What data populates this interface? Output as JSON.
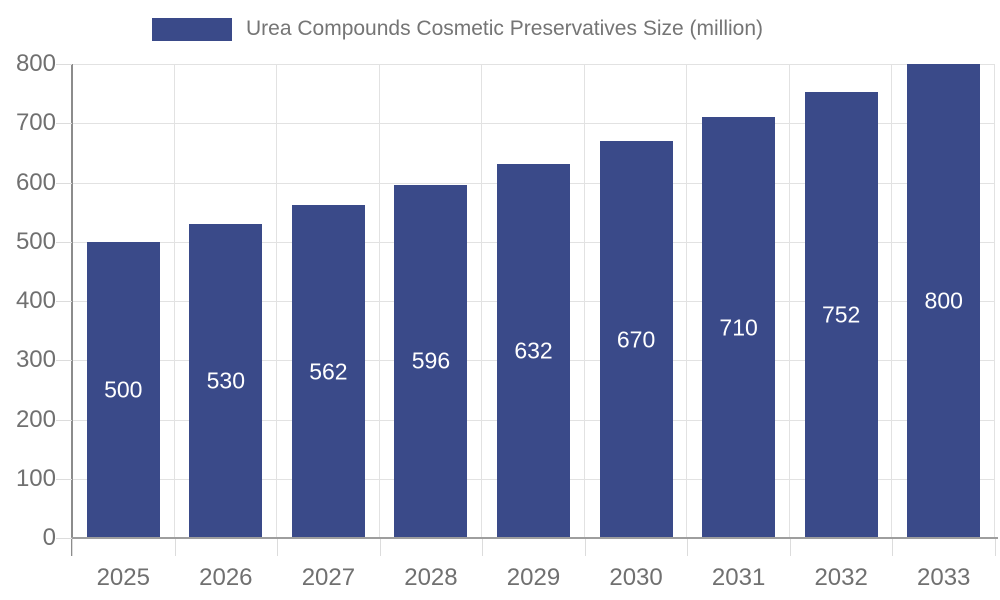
{
  "legend": {
    "label": "Urea Compounds Cosmetic Preservatives Size (million)"
  },
  "chart_data": {
    "type": "bar",
    "title": "Urea Compounds Cosmetic Preservatives Size (million)",
    "categories": [
      "2025",
      "2026",
      "2027",
      "2028",
      "2029",
      "2030",
      "2031",
      "2032",
      "2033"
    ],
    "values": [
      500,
      530,
      562,
      596,
      632,
      670,
      710,
      752,
      800
    ],
    "xlabel": "",
    "ylabel": "",
    "ylim": [
      0,
      800
    ],
    "ytick_step": 100,
    "ytick_labels": [
      "0",
      "100",
      "200",
      "300",
      "400",
      "500",
      "600",
      "700",
      "800"
    ],
    "grid": true,
    "legend_position": "top",
    "bar_label_position": "inside-center"
  },
  "colors": {
    "bar": "#3A4A89",
    "bar_label": "#FFFFFF",
    "legend_text": "#757575",
    "tick_text": "#707070",
    "gridline": "#E2E2E2",
    "axis_line": "#9E9E9E",
    "background": "#FFFFFF"
  }
}
